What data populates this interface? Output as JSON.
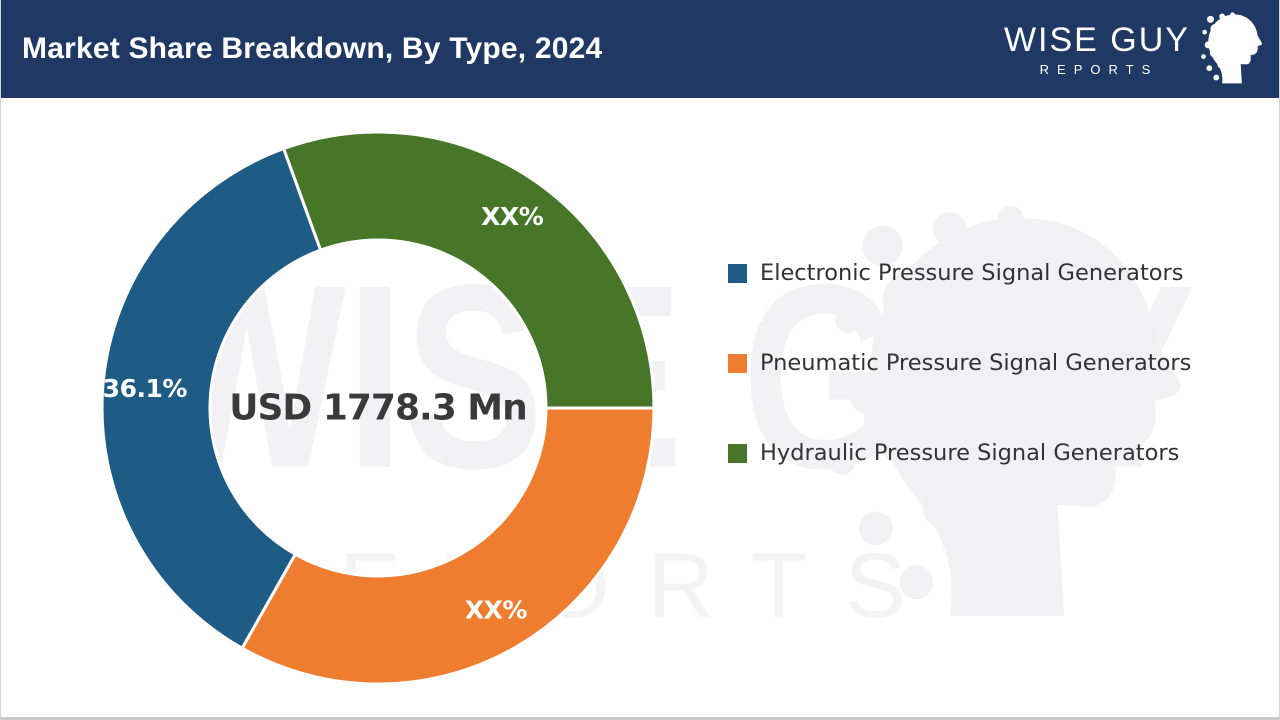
{
  "header": {
    "title": "Market Share Breakdown, By Type, 2024",
    "logo": {
      "line1": "WISE GUY",
      "line2": "REPORTS"
    }
  },
  "watermark": {
    "line1": "WISE GUY",
    "line2": "REPORTS"
  },
  "chart_data": {
    "type": "pie",
    "subtype": "donut",
    "title": "Market Share Breakdown, By Type, 2024",
    "center_label": "USD 1778.3 Mn",
    "legend_position": "right",
    "segments": [
      {
        "category": "Hydraulic Pressure Signal Generators",
        "label": "XX%",
        "value_pct": null,
        "color": "#487628",
        "start_deg": -20,
        "end_deg": 90
      },
      {
        "category": "Pneumatic Pressure Signal Generators",
        "label": "XX%",
        "value_pct": null,
        "color": "#EE7D2F",
        "start_deg": 90,
        "end_deg": 209.5
      },
      {
        "category": "Electronic Pressure Signal Generators",
        "label": "36.1%",
        "value_pct": 36.1,
        "color": "#1F5C85",
        "start_deg": 209.5,
        "end_deg": 340
      }
    ]
  },
  "legend": {
    "items": [
      {
        "label": "Electronic Pressure Signal Generators",
        "color": "#1F5C85"
      },
      {
        "label": "Pneumatic Pressure Signal Generators",
        "color": "#EE7D2F"
      },
      {
        "label": "Hydraulic Pressure Signal Generators",
        "color": "#487628"
      }
    ]
  },
  "colors": {
    "header_bg": "#203864",
    "center_text": "#3A3A3A",
    "legend_text": "#333333",
    "separator": "#FFFFFF"
  }
}
